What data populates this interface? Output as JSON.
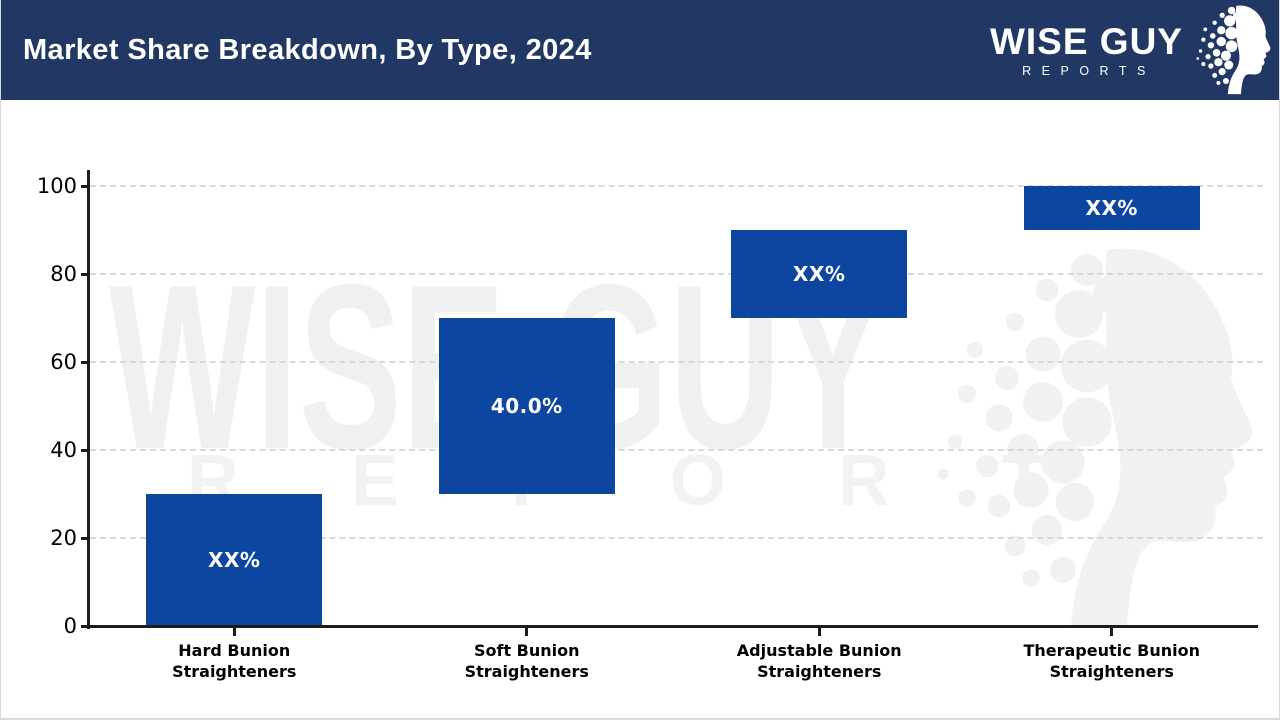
{
  "header": {
    "title": "Market Share Breakdown, By Type, 2024",
    "logo": {
      "line1": "WISE GUY",
      "line2": "REPORTS"
    }
  },
  "watermark": {
    "line1": "WISE GUY",
    "line2": "R E P O R T S"
  },
  "colors": {
    "header_bg": "#213865",
    "bar_fill": "#0c46a0",
    "bar_label_text": "#ffffff",
    "axis": "#1c1c1c",
    "gridline": "#d8d8d8",
    "watermark_text": "#f0f0f0"
  },
  "chart_data": {
    "type": "bar",
    "subtype": "waterfall-stacked-segments",
    "title": "Market Share Breakdown, By Type, 2024",
    "categories": [
      "Hard Bunion Straighteners",
      "Soft Bunion Straighteners",
      "Adjustable Bunion Straighteners",
      "Therapeutic Bunion Straighteners"
    ],
    "category_label_lines": [
      [
        "Hard Bunion",
        "Straighteners"
      ],
      [
        "Soft Bunion",
        "Straighteners"
      ],
      [
        "Adjustable Bunion",
        "Straighteners"
      ],
      [
        "Therapeutic Bunion",
        "Straighteners"
      ]
    ],
    "segments": [
      {
        "category": "Hard Bunion Straighteners",
        "start": 0,
        "end": 30,
        "value": 30,
        "value_label": "XX%"
      },
      {
        "category": "Soft Bunion Straighteners",
        "start": 30,
        "end": 70,
        "value": 40,
        "value_label": "40.0%"
      },
      {
        "category": "Adjustable Bunion Straighteners",
        "start": 70,
        "end": 90,
        "value": 20,
        "value_label": "XX%"
      },
      {
        "category": "Therapeutic Bunion Straighteners",
        "start": 90,
        "end": 100,
        "value": 10,
        "value_label": "XX%"
      }
    ],
    "y_ticks": [
      0,
      20,
      40,
      60,
      80,
      100
    ],
    "ylim": [
      0,
      105
    ],
    "xlabel": "",
    "ylabel": "",
    "grid": "horizontal-dashed",
    "legend": "none"
  }
}
